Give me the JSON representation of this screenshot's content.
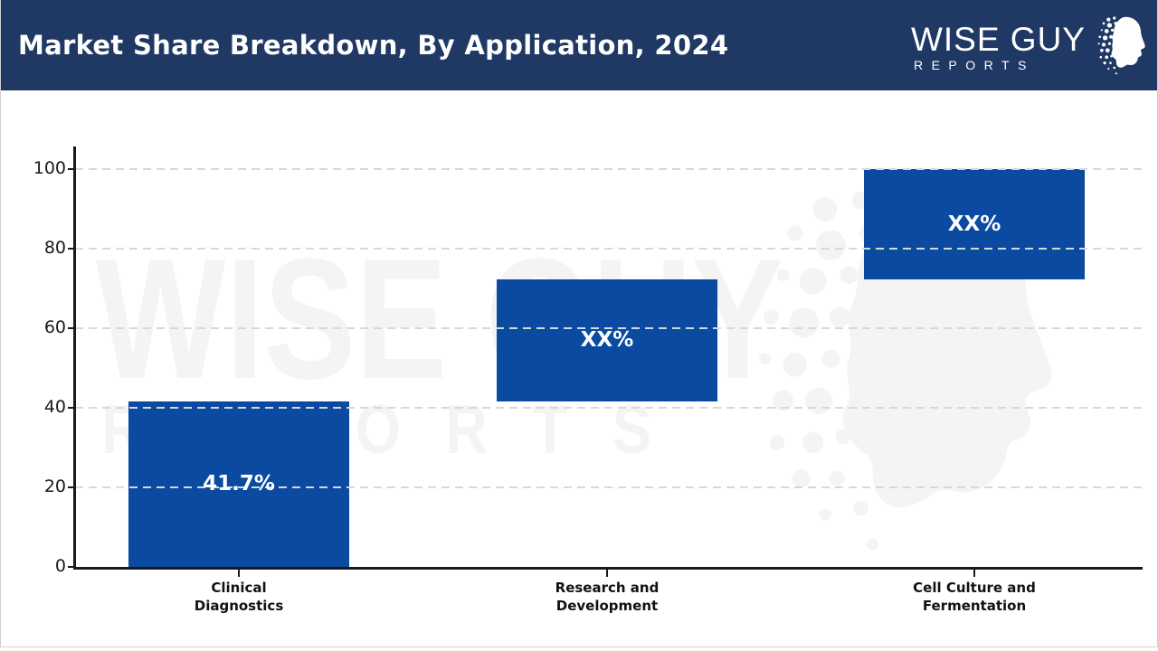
{
  "header": {
    "title": "Market Share Breakdown, By Application, 2024",
    "brand": {
      "line1": "WISE GUY",
      "line2": "REPORTS"
    },
    "bg_color": "#1f3864"
  },
  "watermark": {
    "line1": "WISE GUY",
    "line2": "REPORTS"
  },
  "chart_data": {
    "type": "bar",
    "variant": "waterfall",
    "title": "Market Share Breakdown, By Application, 2024",
    "categories": [
      "Clinical Diagnostics",
      "Research and Development",
      "Cell Culture and Fermentation"
    ],
    "bars": [
      {
        "category": "Clinical Diagnostics",
        "label_lines": [
          "Clinical",
          "Diagnostics"
        ],
        "start": 0,
        "end": 41.7,
        "label": "41.7%"
      },
      {
        "category": "Research and Development",
        "label_lines": [
          "Research and",
          "Development"
        ],
        "start": 41.7,
        "end": 72.2,
        "label": "XX%"
      },
      {
        "category": "Cell Culture and Fermentation",
        "label_lines": [
          "Cell Culture and",
          "Fermentation"
        ],
        "start": 72.2,
        "end": 100,
        "label": "XX%"
      }
    ],
    "xlabel": "",
    "ylabel": "",
    "ylim": [
      0,
      100
    ],
    "yticks": [
      0,
      20,
      40,
      60,
      80,
      100
    ],
    "grid": "horizontal-dashed",
    "legend": "none",
    "bar_color": "#0a4aa0",
    "bar_label_color": "#ffffff"
  }
}
